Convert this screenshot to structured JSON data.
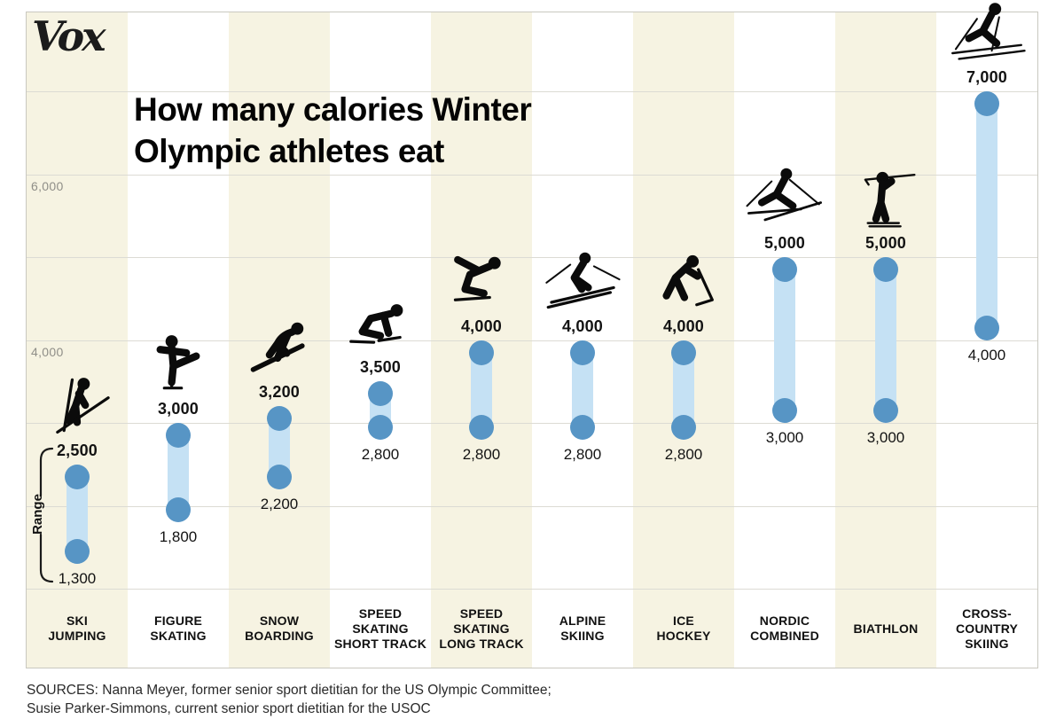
{
  "logo": {
    "text": "Vox"
  },
  "title": {
    "line1": "How many calories Winter",
    "line2": "Olympic athletes eat"
  },
  "range_annotation": {
    "label": "Range"
  },
  "sources": {
    "line1": "SOURCES: Nanna Meyer, former senior sport dietitian for the US Olympic Committee;",
    "line2": "Susie Parker-Simmons, current senior sport dietitian for the USOC"
  },
  "colors": {
    "band_cream": "#f6f3e2",
    "bar_fill": "#c5e1f4",
    "dot_fill": "#5795c5",
    "gridline": "#dcdbd4",
    "frame_border": "#c9c8c0",
    "axis_label": "#8f8e88",
    "text": "#131313",
    "icon_black": "#0b0b0b"
  },
  "chart_data": {
    "type": "dumbbell-range",
    "title": "How many calories Winter Olympic athletes eat",
    "unit": "calories per day",
    "ylim": [
      1000,
      8000
    ],
    "gridline_values": [
      1000,
      2000,
      3000,
      4000,
      5000,
      6000,
      7000
    ],
    "y_tick_labels": [
      {
        "value": 6000,
        "label": "6,000"
      },
      {
        "value": 4000,
        "label": "4,000"
      }
    ],
    "legend": "Range",
    "categories": [
      {
        "name": "Ski jumping",
        "axis_label": "SKI\nJUMPING",
        "icon": "ski-jumping-icon",
        "min": 1300,
        "max": 2500,
        "min_label": "1,300",
        "max_label": "2,500"
      },
      {
        "name": "Figure skating",
        "axis_label": "FIGURE\nSKATING",
        "icon": "figure-skating-icon",
        "min": 1800,
        "max": 3000,
        "min_label": "1,800",
        "max_label": "3,000"
      },
      {
        "name": "Snowboarding",
        "axis_label": "SNOW\nBOARDING",
        "icon": "snowboarding-icon",
        "min": 2200,
        "max": 3200,
        "min_label": "2,200",
        "max_label": "3,200"
      },
      {
        "name": "Speed skating short track",
        "axis_label": "SPEED\nSKATING\nSHORT TRACK",
        "icon": "speed-skating-short-track-icon",
        "min": 2800,
        "max": 3500,
        "min_label": "2,800",
        "max_label": "3,500"
      },
      {
        "name": "Speed skating long track",
        "axis_label": "SPEED\nSKATING\nLONG TRACK",
        "icon": "speed-skating-long-track-icon",
        "min": 2800,
        "max": 4000,
        "min_label": "2,800",
        "max_label": "4,000"
      },
      {
        "name": "Alpine skiing",
        "axis_label": "ALPINE\nSKIING",
        "icon": "alpine-skiing-icon",
        "min": 2800,
        "max": 4000,
        "min_label": "2,800",
        "max_label": "4,000"
      },
      {
        "name": "Ice hockey",
        "axis_label": "ICE\nHOCKEY",
        "icon": "ice-hockey-icon",
        "min": 2800,
        "max": 4000,
        "min_label": "2,800",
        "max_label": "4,000"
      },
      {
        "name": "Nordic combined",
        "axis_label": "NORDIC\nCOMBINED",
        "icon": "nordic-combined-icon",
        "min": 3000,
        "max": 5000,
        "min_label": "3,000",
        "max_label": "5,000"
      },
      {
        "name": "Biathlon",
        "axis_label": "BIATHLON",
        "icon": "biathlon-icon",
        "min": 3000,
        "max": 5000,
        "min_label": "3,000",
        "max_label": "5,000"
      },
      {
        "name": "Cross-country skiing",
        "axis_label": "CROSS-\nCOUNTRY\nSKIING",
        "icon": "cross-country-skiing-icon",
        "min": 4000,
        "max": 7000,
        "min_label": "4,000",
        "max_label": "7,000"
      }
    ]
  }
}
